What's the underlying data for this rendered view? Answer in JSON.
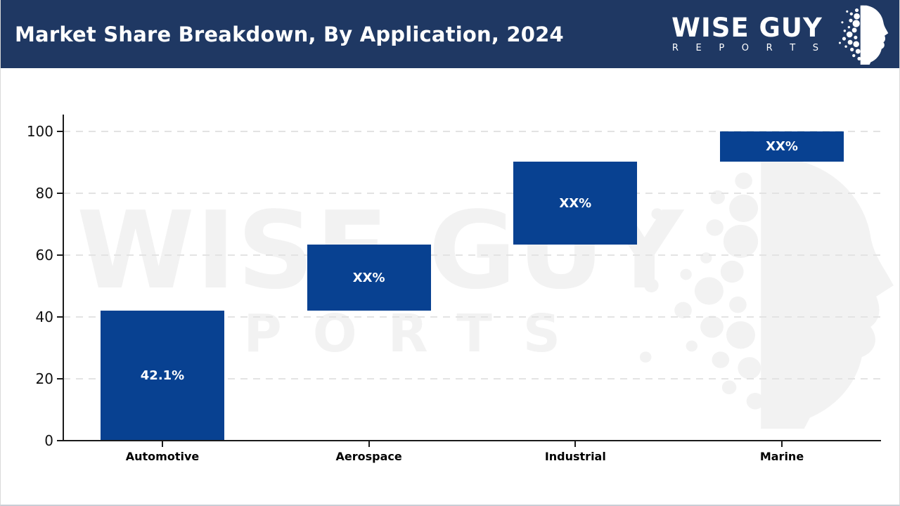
{
  "header": {
    "title": "Market Share Breakdown, By Application, 2024",
    "logo": {
      "line1": "WISE GUY",
      "line2": "REPORTS"
    }
  },
  "watermark": {
    "line1": "WISE GUY",
    "line2": "REPORTS"
  },
  "colors": {
    "header_bg": "#1f3863",
    "bar": "#084191",
    "bar_label": "#ffffff",
    "grid": "#e3e3e3",
    "axis": "#1a1a1a",
    "watermark": "#f2f2f2"
  },
  "chart_data": {
    "type": "bar",
    "subtype": "waterfall",
    "title": "Market Share Breakdown, By Application, 2024",
    "xlabel": "",
    "ylabel": "",
    "categories": [
      "Automotive",
      "Aerospace",
      "Industrial",
      "Marine"
    ],
    "segments": [
      {
        "category": "Automotive",
        "start": 0,
        "end": 42.1,
        "value": 42.1,
        "label": "42.1%"
      },
      {
        "category": "Aerospace",
        "start": 42.1,
        "end": 63.3,
        "value": 21.2,
        "label": "XX%"
      },
      {
        "category": "Industrial",
        "start": 63.3,
        "end": 90.3,
        "value": 27.0,
        "label": "XX%"
      },
      {
        "category": "Marine",
        "start": 90.3,
        "end": 100,
        "value": 9.7,
        "label": "XX%"
      }
    ],
    "ylim": [
      0,
      100
    ],
    "yticks": [
      0,
      20,
      40,
      60,
      80,
      100
    ],
    "grid": true,
    "grid_style": "dashed",
    "legend": false
  }
}
